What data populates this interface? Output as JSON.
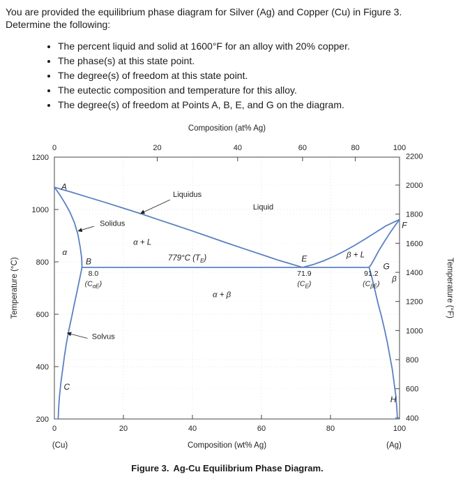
{
  "question": {
    "intro": "You are provided the equilibrium phase diagram for Silver (Ag) and Copper (Cu) in Figure 3.  Determine the following:",
    "bullets": [
      "The percent liquid and solid at 1600°F for an alloy with 20% copper.",
      "The phase(s) at this state point.",
      "The degree(s) of freedom at this state point.",
      "The eutectic composition and temperature for this alloy.",
      "The degree(s) of freedom at Points A, B, E, and G on the diagram."
    ]
  },
  "figure": {
    "caption_label": "Figure 3.",
    "caption_text": "Ag-Cu Equilibrium Phase Diagram."
  },
  "chart_data": {
    "type": "line",
    "title": "Ag-Cu Equilibrium Phase Diagram",
    "curve_color": "#5b80c2",
    "axes": {
      "top": {
        "label": "Composition (at% Ag)",
        "tick_labels": [
          "0",
          "20",
          "40",
          "60",
          "80",
          "100"
        ],
        "tick_positions_wt": [
          0,
          29.8,
          53.1,
          71.9,
          87.2,
          100
        ]
      },
      "bottom": {
        "label": "Composition (wt% Ag)",
        "ticks": [
          0,
          20,
          40,
          60,
          80,
          100
        ],
        "range": [
          0,
          100
        ],
        "left_end_label": "(Cu)",
        "right_end_label": "(Ag)"
      },
      "left": {
        "label": "Temperature (°C)",
        "ticks": [
          200,
          400,
          600,
          800,
          1000,
          1200
        ],
        "range": [
          200,
          1200
        ]
      },
      "right": {
        "label": "Temperature (°F)",
        "ticks": [
          400,
          600,
          800,
          1000,
          1200,
          1400,
          1600,
          1800,
          2000,
          2200
        ]
      }
    },
    "series": [
      {
        "name": "liquidus-left",
        "points": [
          [
            0,
            1085
          ],
          [
            5,
            1066
          ],
          [
            10,
            1046
          ],
          [
            15,
            1026
          ],
          [
            20,
            1005
          ],
          [
            25,
            984
          ],
          [
            30,
            962
          ],
          [
            35,
            940
          ],
          [
            40,
            918
          ],
          [
            45,
            895
          ],
          [
            50,
            872
          ],
          [
            55,
            850
          ],
          [
            60,
            828
          ],
          [
            65,
            806
          ],
          [
            71.9,
            779
          ]
        ]
      },
      {
        "name": "liquidus-right",
        "points": [
          [
            71.9,
            779
          ],
          [
            75,
            790
          ],
          [
            78,
            804
          ],
          [
            81,
            821
          ],
          [
            84,
            841
          ],
          [
            87,
            863
          ],
          [
            90,
            887
          ],
          [
            93,
            912
          ],
          [
            96,
            937
          ],
          [
            100,
            962
          ]
        ]
      },
      {
        "name": "solidus-left",
        "points": [
          [
            0,
            1085
          ],
          [
            1.5,
            1058
          ],
          [
            3,
            1026
          ],
          [
            4.5,
            990
          ],
          [
            5.8,
            950
          ],
          [
            6.8,
            905
          ],
          [
            7.5,
            855
          ],
          [
            7.9,
            815
          ],
          [
            8,
            779
          ]
        ]
      },
      {
        "name": "solidus-right",
        "points": [
          [
            100,
            962
          ],
          [
            98.5,
            935
          ],
          [
            97,
            906
          ],
          [
            95.5,
            875
          ],
          [
            94,
            843
          ],
          [
            92.8,
            814
          ],
          [
            91.8,
            790
          ],
          [
            91.2,
            779
          ]
        ]
      },
      {
        "name": "eutectic-isotherm",
        "points": [
          [
            8,
            779
          ],
          [
            91.2,
            779
          ]
        ]
      },
      {
        "name": "solvus-left",
        "points": [
          [
            8,
            779
          ],
          [
            7.4,
            740
          ],
          [
            6.6,
            690
          ],
          [
            5.8,
            640
          ],
          [
            5,
            590
          ],
          [
            4.2,
            540
          ],
          [
            3.5,
            490
          ],
          [
            2.9,
            440
          ],
          [
            2.4,
            390
          ],
          [
            1.9,
            340
          ],
          [
            1.5,
            290
          ],
          [
            1.25,
            245
          ],
          [
            1.1,
            200
          ]
        ]
      },
      {
        "name": "solvus-right",
        "points": [
          [
            91.2,
            779
          ],
          [
            92,
            740
          ],
          [
            92.9,
            690
          ],
          [
            93.8,
            640
          ],
          [
            94.8,
            590
          ],
          [
            95.7,
            540
          ],
          [
            96.5,
            490
          ],
          [
            97.2,
            440
          ],
          [
            97.9,
            390
          ],
          [
            98.4,
            340
          ],
          [
            98.9,
            290
          ],
          [
            99.2,
            245
          ],
          [
            99.4,
            200
          ]
        ]
      }
    ],
    "annotations": [
      {
        "name": "point-a",
        "text": "A",
        "x": 2.8,
        "y": 1076,
        "cls": "point"
      },
      {
        "name": "point-b",
        "text": "B",
        "x": 9.9,
        "y": 791,
        "cls": "point"
      },
      {
        "name": "point-c",
        "text": "C",
        "x": 3.6,
        "y": 312,
        "cls": "point"
      },
      {
        "name": "point-e",
        "text": "E",
        "x": 72.4,
        "y": 801,
        "cls": "point"
      },
      {
        "name": "point-f",
        "text": "F",
        "x": 101.4,
        "y": 929,
        "cls": "point"
      },
      {
        "name": "point-g",
        "text": "G",
        "x": 96.2,
        "y": 772,
        "cls": "point"
      },
      {
        "name": "point-h",
        "text": "H",
        "x": 98.2,
        "y": 264,
        "cls": "point"
      },
      {
        "name": "alpha-region",
        "text": "α",
        "x": 3.0,
        "y": 827,
        "cls": "phase"
      },
      {
        "name": "beta-region",
        "text": "β",
        "x": 98.5,
        "y": 726,
        "cls": "phase"
      },
      {
        "name": "liquid-region",
        "text": "Liquid",
        "x": 60.5,
        "y": 1000,
        "cls": "region"
      },
      {
        "name": "alpha-plus-l-region",
        "text": "α + L",
        "x": 25.5,
        "y": 866,
        "cls": "phase"
      },
      {
        "name": "beta-plus-l-region",
        "text": "β + L",
        "x": 87.3,
        "y": 818,
        "cls": "phase"
      },
      {
        "name": "alpha-plus-beta-region",
        "text": "α + β",
        "x": 48.5,
        "y": 666,
        "cls": "phase"
      },
      {
        "name": "liquidus-label",
        "text": "Liquidus",
        "x": 38.5,
        "y": 1048,
        "cls": "region"
      },
      {
        "name": "solidus-label",
        "text": "Solidus",
        "x": 16.8,
        "y": 938,
        "cls": "region"
      },
      {
        "name": "solvus-label",
        "text": "Solvus",
        "x": 14.2,
        "y": 505,
        "cls": "region"
      },
      {
        "name": "eutectic-temperature-label",
        "text": "779°C (T",
        "sub": "E",
        "post": ")",
        "x": 38.5,
        "y": 806,
        "cls": "phase"
      },
      {
        "name": "c-alpha-e-value",
        "text": "8.0",
        "x": 11.3,
        "y": 747,
        "cls": "value"
      },
      {
        "name": "c-alpha-e-symbol",
        "text": "(C",
        "sub": "αE",
        "post": ")",
        "x": 11.3,
        "y": 708,
        "cls": "valueit"
      },
      {
        "name": "eutectic-composition-value",
        "text": "71.9",
        "x": 72.4,
        "y": 747,
        "cls": "value"
      },
      {
        "name": "c-e-symbol",
        "text": "(C",
        "sub": "E",
        "post": ")",
        "x": 72.4,
        "y": 708,
        "cls": "valueit"
      },
      {
        "name": "c-beta-e-value",
        "text": "91.2",
        "x": 91.8,
        "y": 747,
        "cls": "value"
      },
      {
        "name": "c-beta-e-symbol",
        "text": "(C",
        "sub": "βE",
        "post": ")",
        "x": 91.8,
        "y": 708,
        "cls": "valueit"
      }
    ],
    "leaders": [
      {
        "name": "liquidus-arrow",
        "from": [
          33.5,
          1037
        ],
        "to": [
          25.0,
          985
        ]
      },
      {
        "name": "solidus-arrow",
        "from": [
          11.5,
          936
        ],
        "to": [
          6.9,
          918
        ]
      },
      {
        "name": "solvus-arrow",
        "from": [
          9.6,
          508
        ],
        "to": [
          3.75,
          528
        ]
      }
    ]
  }
}
